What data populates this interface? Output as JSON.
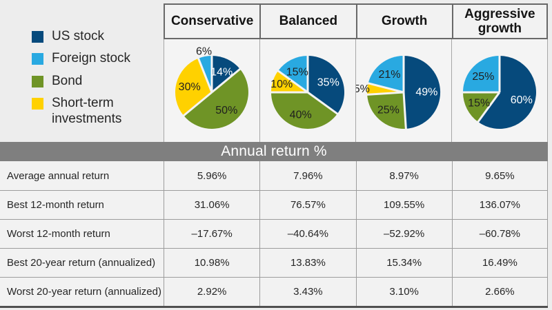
{
  "legend": {
    "items": [
      {
        "label": "US stock",
        "color": "#064A7C"
      },
      {
        "label": "Foreign stock",
        "color": "#29A9E1"
      },
      {
        "label": "Bond",
        "color": "#6F9426"
      },
      {
        "label": "Short-term investments",
        "color": "#FFD100"
      }
    ]
  },
  "columns": [
    "Conservative",
    "Balanced",
    "Growth",
    "Aggressive growth"
  ],
  "chart_data": {
    "type": "pie",
    "unit": "%",
    "legend": [
      "US stock",
      "Foreign stock",
      "Bond",
      "Short-term investments"
    ],
    "colors": {
      "US stock": "#064A7C",
      "Foreign stock": "#29A9E1",
      "Bond": "#6F9426",
      "Short-term investments": "#FFD100"
    },
    "slice_order": [
      "US stock",
      "Bond",
      "Short-term investments",
      "Foreign stock"
    ],
    "start_angle_deg": -90,
    "direction": "clockwise",
    "pies": [
      {
        "name": "Conservative",
        "values": {
          "US stock": 14,
          "Bond": 50,
          "Short-term investments": 30,
          "Foreign stock": 6
        }
      },
      {
        "name": "Balanced",
        "values": {
          "US stock": 35,
          "Bond": 40,
          "Short-term investments": 10,
          "Foreign stock": 15
        }
      },
      {
        "name": "Growth",
        "values": {
          "US stock": 49,
          "Bond": 25,
          "Short-term investments": 5,
          "Foreign stock": 21
        }
      },
      {
        "name": "Aggressive growth",
        "values": {
          "US stock": 60,
          "Bond": 15,
          "Short-term investments": 0,
          "Foreign stock": 25
        }
      }
    ]
  },
  "table": {
    "band_title": "Annual return %",
    "rows": [
      {
        "label": "Average annual return",
        "values": [
          "5.96%",
          "7.96%",
          "8.97%",
          "9.65%"
        ]
      },
      {
        "label": "Best 12-month return",
        "values": [
          "31.06%",
          "76.57%",
          "109.55%",
          "136.07%"
        ]
      },
      {
        "label": "Worst 12-month return",
        "values": [
          "–17.67%",
          "–40.64%",
          "–52.92%",
          "–60.78%"
        ]
      },
      {
        "label": "Best 20-year return (annualized)",
        "values": [
          "10.98%",
          "13.83%",
          "15.34%",
          "16.49%"
        ]
      },
      {
        "label": "Worst 20-year return (annualized)",
        "values": [
          "2.92%",
          "3.43%",
          "3.10%",
          "2.66%"
        ]
      }
    ]
  },
  "colors": {
    "band_bg": "#7F7F7F",
    "band_text": "#FFFFFF",
    "page_bg": "#EDEDED",
    "grid_line": "#9C9C9C",
    "header_border": "#686868"
  }
}
